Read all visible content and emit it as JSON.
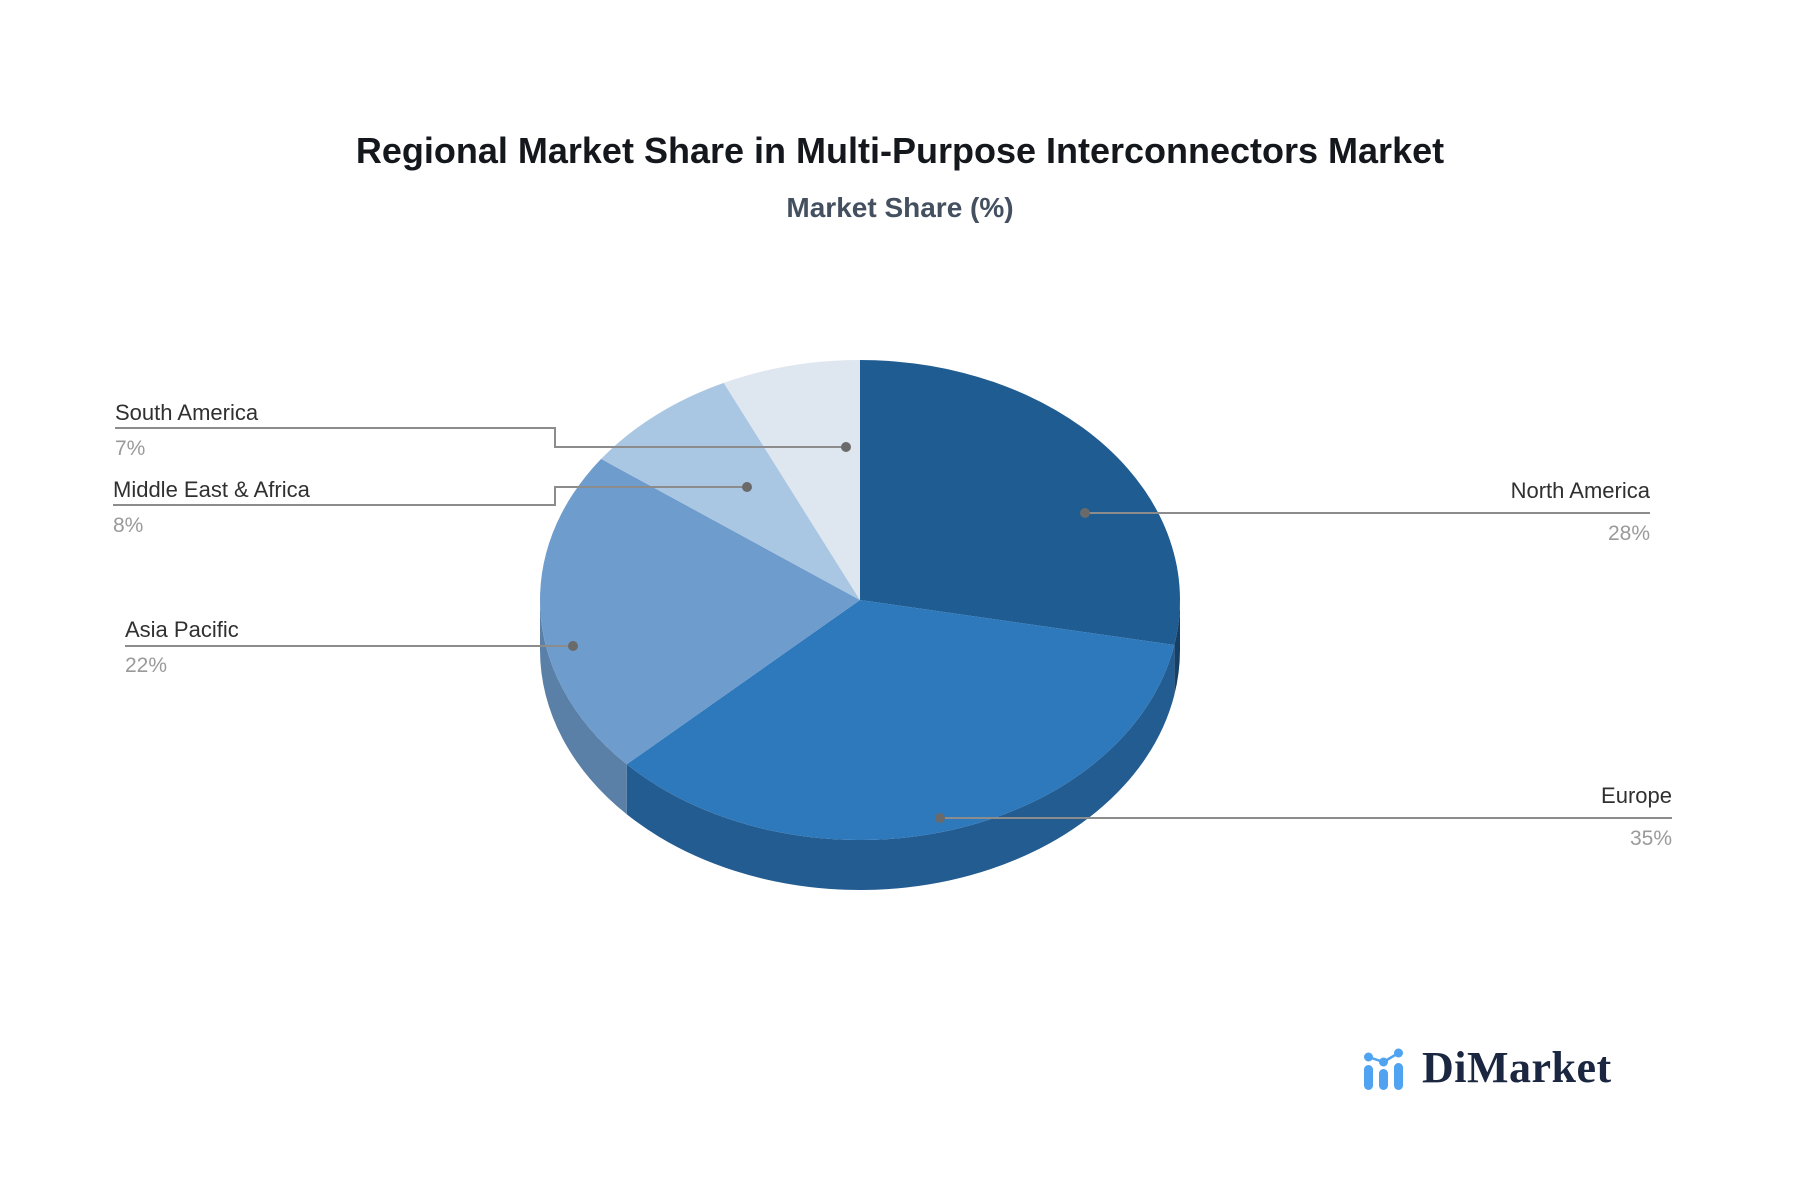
{
  "chart_data": {
    "type": "pie",
    "style": "3d-pie",
    "title": "Regional Market Share in Multi-Purpose Interconnectors Market",
    "subtitle": "Market Share (%)",
    "unit": "%",
    "legend_position": "callout-labels",
    "order_clockwise_from_top": [
      "North America",
      "Europe",
      "Asia Pacific",
      "Middle East & Africa",
      "South America"
    ],
    "slices": [
      {
        "label": "North America",
        "value": 28,
        "pct_label": "28%",
        "color": "#1F5C92",
        "side_color": "#163F66"
      },
      {
        "label": "Europe",
        "value": 35,
        "pct_label": "35%",
        "color": "#2E78BC",
        "side_color": "#235C90"
      },
      {
        "label": "Asia Pacific",
        "value": 22,
        "pct_label": "22%",
        "color": "#6E9CCD",
        "side_color": "#5A80A7"
      },
      {
        "label": "Middle East & Africa",
        "value": 8,
        "pct_label": "8%",
        "color": "#A9C7E3",
        "side_color": "#87A3BE"
      },
      {
        "label": "South America",
        "value": 7,
        "pct_label": "7%",
        "color": "#DEE6F0",
        "side_color": "#B6C2D1"
      }
    ],
    "colors": {
      "leader_line": "#8C8C8C",
      "leader_dot": "#6A6A6A",
      "label_text": "#303030",
      "percent_text": "#9A9A9A",
      "title_text": "#14171C",
      "subtitle_text": "#44505F"
    }
  },
  "logo": {
    "text": "DiMarket",
    "icon": "bar-chart-logo-icon",
    "icon_color": "#4FA3F0",
    "text_color": "#1B2740"
  }
}
